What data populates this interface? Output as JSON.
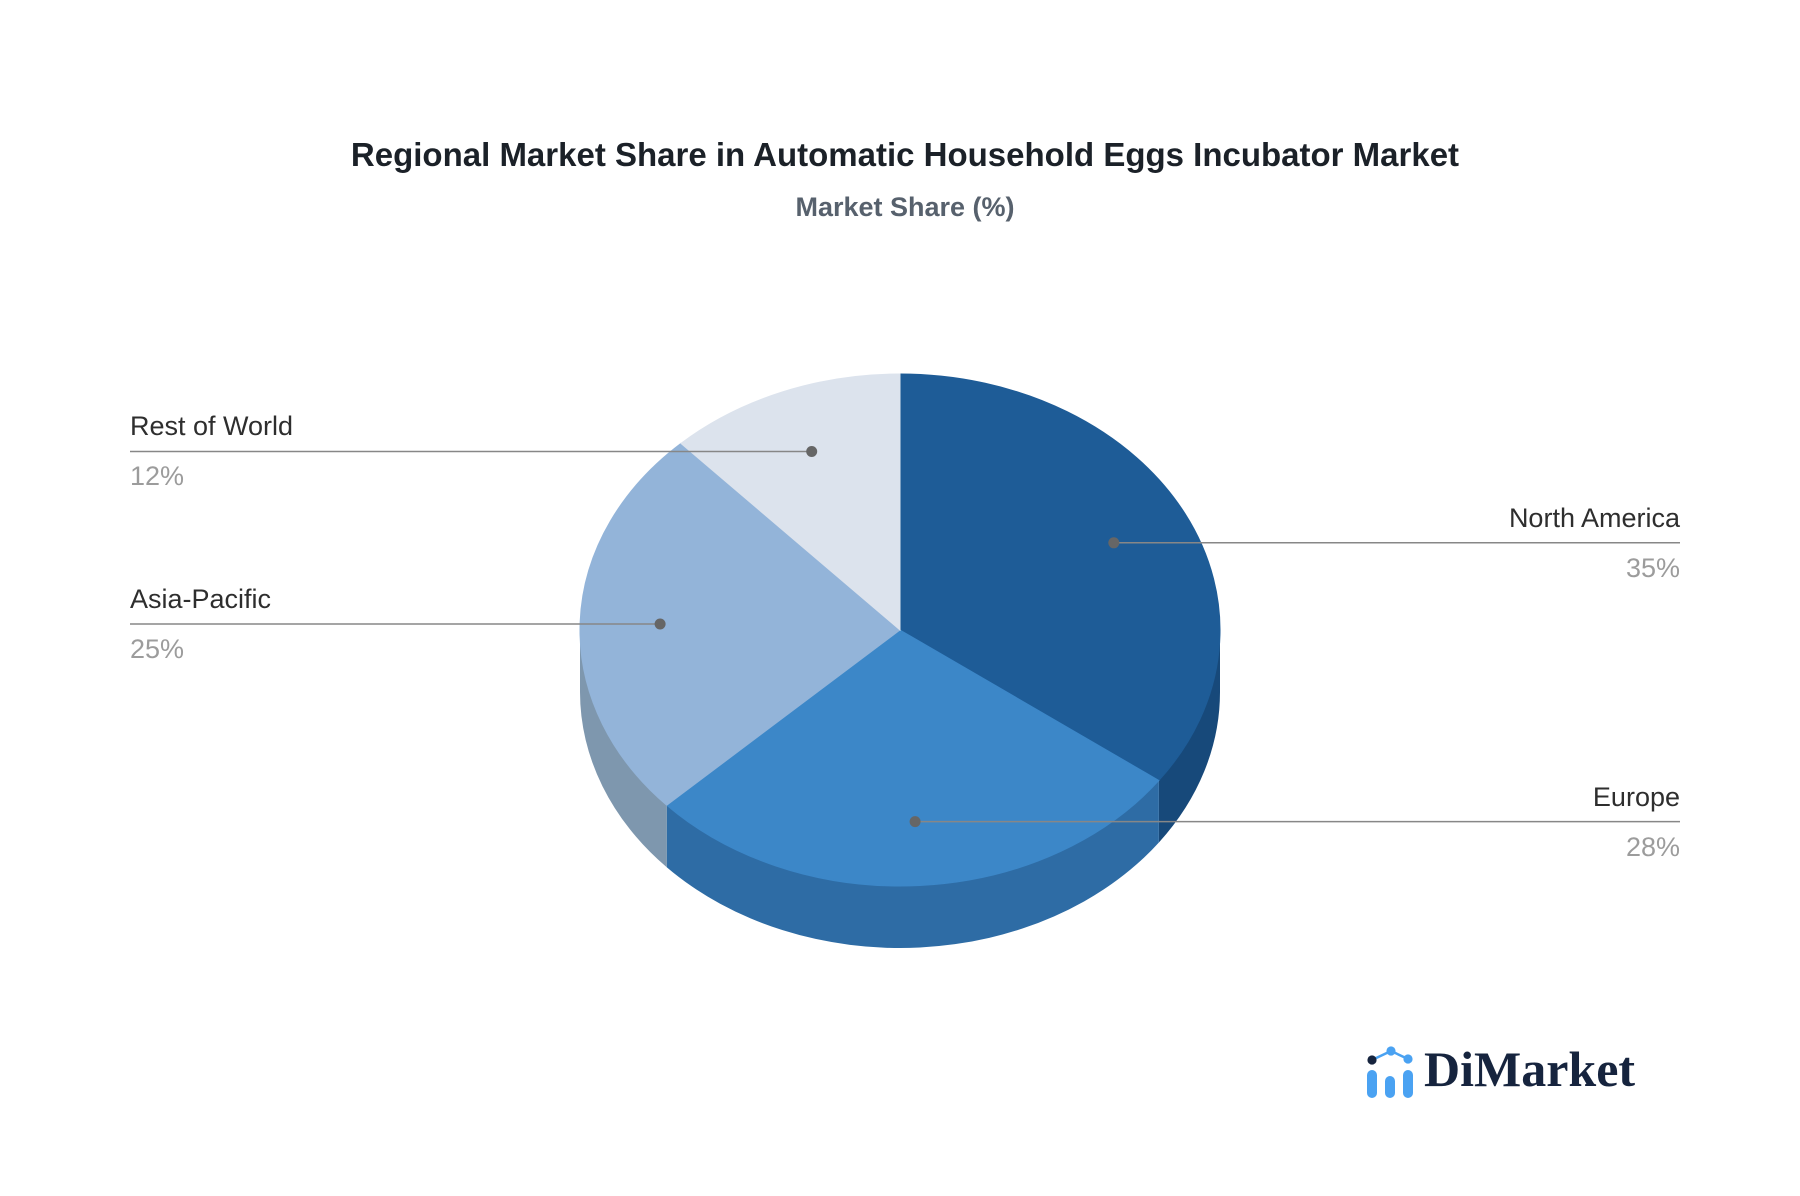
{
  "page": {
    "background": "#ffffff"
  },
  "header": {
    "title": "Regional Market Share in Automatic Household Eggs Incubator Market",
    "subtitle": "Market Share (%)"
  },
  "chart_data": {
    "type": "pie",
    "style": "3d",
    "title": "Regional Market Share in Automatic Household Eggs Incubator Market",
    "subtitle": "Market Share (%)",
    "unit": "%",
    "start_angle_deg": 90,
    "direction": "clockwise",
    "legend_position": "callout-labels",
    "categories": [
      "North America",
      "Europe",
      "Asia-Pacific",
      "Rest of World"
    ],
    "values": [
      35,
      28,
      25,
      12
    ],
    "series": [
      {
        "name": "North America",
        "value": 35,
        "pct_label": "35%",
        "color_top": "#1e5c97",
        "color_side": "#17497a",
        "label_side": "right"
      },
      {
        "name": "Europe",
        "value": 28,
        "pct_label": "28%",
        "color_top": "#3c87c8",
        "color_side": "#2e6ca5",
        "label_side": "right"
      },
      {
        "name": "Asia-Pacific",
        "value": 25,
        "pct_label": "25%",
        "color_top": "#93b4d9",
        "color_side": "#7e97ae",
        "label_side": "left"
      },
      {
        "name": "Rest of World",
        "value": 12,
        "pct_label": "12%",
        "color_top": "#dce3ed",
        "color_side": "#c5cfde",
        "label_side": "left"
      }
    ],
    "callout": {
      "line_color": "#878787",
      "dot_color": "#666666",
      "name_color": "#2e2e2e",
      "value_color": "#9c9c9c"
    }
  },
  "branding": {
    "logo_text": "DiMarket",
    "logo_icon": "bar-chart-trend-icon",
    "logo_text_color": "#16243e",
    "logo_accent_color": "#4aa2f2"
  }
}
